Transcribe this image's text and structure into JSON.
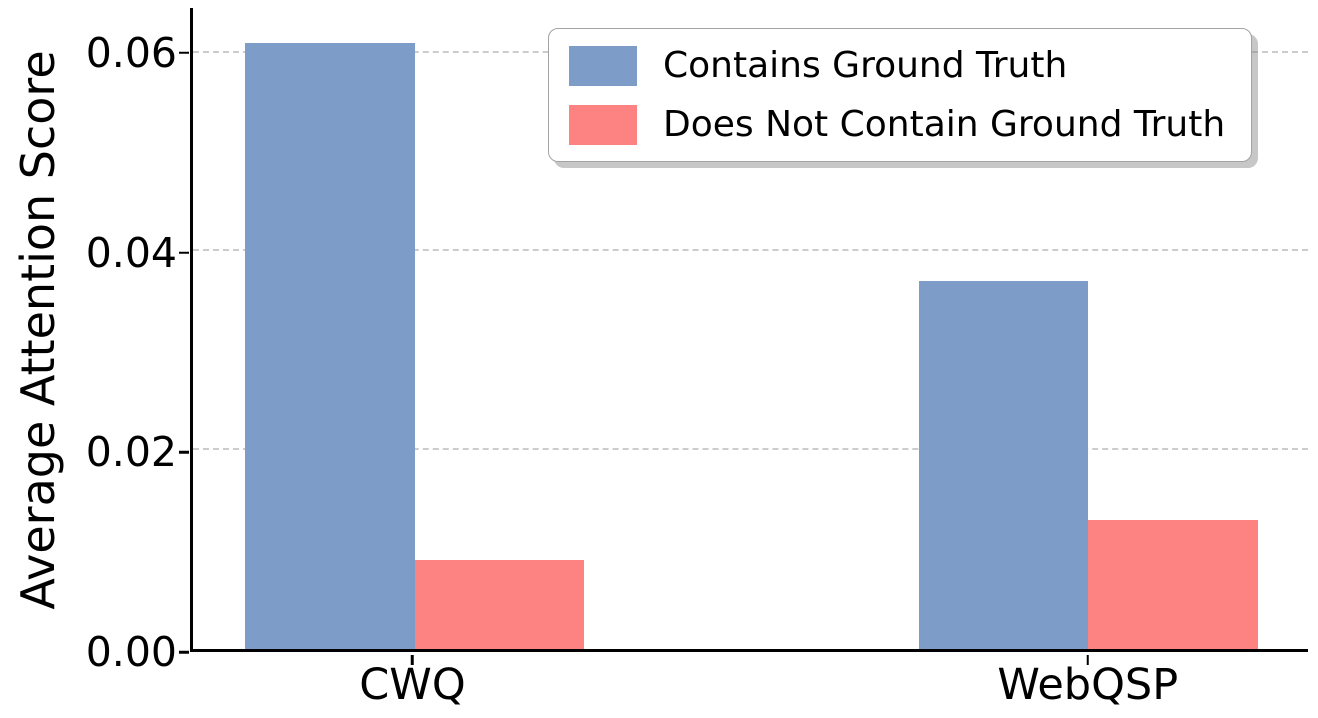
{
  "chart_data": {
    "type": "bar",
    "categories": [
      "CWQ",
      "WebQSP"
    ],
    "series": [
      {
        "name": "Contains Ground Truth",
        "color": "#7d9cc8",
        "values": [
          0.061,
          0.037
        ]
      },
      {
        "name": "Does Not Contain Ground Truth",
        "color": "#fd8383",
        "values": [
          0.009,
          0.013
        ]
      }
    ],
    "title": "",
    "xlabel": "",
    "ylabel": "Average Attention Score",
    "yticks": [
      0,
      0.02,
      0.04,
      0.06
    ],
    "ytick_labels": [
      "0.00",
      "0.02",
      "0.04",
      "0.06"
    ],
    "ylim": [
      0,
      0.0645
    ],
    "grid": "horizontal-dashed",
    "gridline_color": "#cccccc",
    "axis_color": "#000000",
    "background_color": "#ffffff",
    "legend_position": "upper-center"
  }
}
